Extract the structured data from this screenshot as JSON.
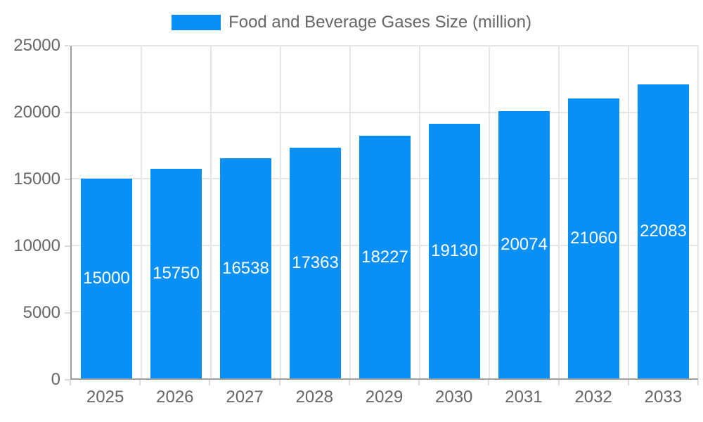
{
  "colors": {
    "bar": "#0990f6",
    "grid": "#e6e6e6",
    "tick": "#dcdcdc",
    "axis": "#9e9e9e",
    "text": "#666666",
    "value": "#ffffff",
    "bg": "#ffffff"
  },
  "chart_data": {
    "type": "bar",
    "title": "",
    "legend": "Food and Beverage Gases Size (million)",
    "legend_position": "top-center",
    "categories": [
      "2025",
      "2026",
      "2027",
      "2028",
      "2029",
      "2030",
      "2031",
      "2032",
      "2033"
    ],
    "values": [
      15000,
      15750,
      16538,
      17363,
      18227,
      19130,
      20074,
      21060,
      22083
    ],
    "value_labels_inside_bars": true,
    "xlabel": "",
    "ylabel": "",
    "ylim": [
      0,
      25000
    ],
    "y_ticks": [
      0,
      5000,
      10000,
      15000,
      20000,
      25000
    ],
    "grid": true
  }
}
